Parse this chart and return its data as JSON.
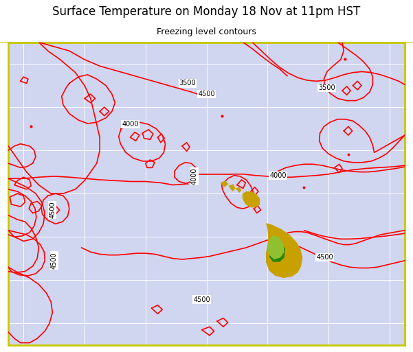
{
  "title": "Surface Temperature on Monday 18 Nov at 11pm HST",
  "subtitle": "Freezing level contours",
  "title_fontsize": 12,
  "subtitle_fontsize": 9,
  "background_color": "#ffffff",
  "map_bg_color": "#d0d5f0",
  "grid_color": "#ffffff",
  "border_color": "#c8c800",
  "contour_color": "#ff0000",
  "contour_linewidth": 1.2,
  "label_fontsize": 7,
  "xlim": [
    -164.5,
    -151.5
  ],
  "ylim": [
    17.5,
    24.5
  ],
  "figsize": [
    6.01,
    5.13
  ],
  "dpi": 100,
  "grid_lw": 0.7,
  "island_colors": {
    "big_island_low": "#c8a000",
    "big_island_mid": "#90c030",
    "big_island_high": "#228800",
    "small_tan": "#c8a000"
  }
}
